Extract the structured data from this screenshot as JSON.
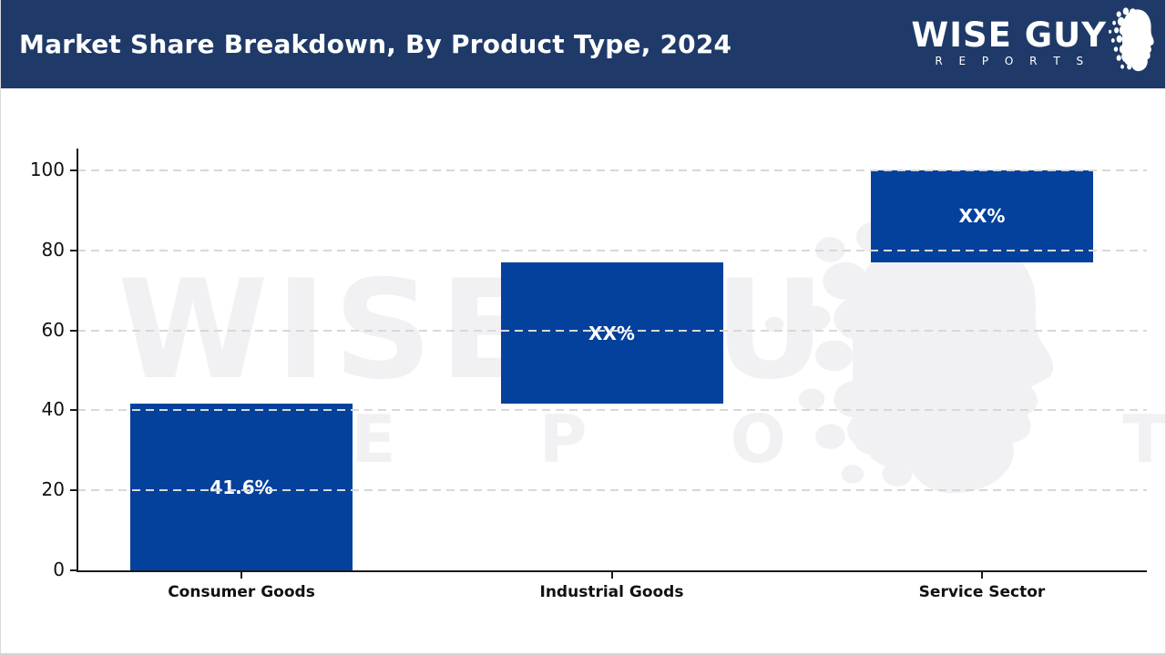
{
  "header": {
    "title": "Market Share Breakdown, By Product Type, 2024",
    "logo": {
      "line1": "WISE GUY",
      "line2": "R E P O R T S"
    }
  },
  "watermark": {
    "line1": "WISE GUY",
    "line2": "R E P O R T S"
  },
  "colors": {
    "header_bg": "#1f3a68",
    "bar": "#04419c",
    "grid": "#d8d8d8",
    "axis": "#1a1a1a",
    "watermark": "#f1f1f3",
    "bar_label": "#ffffff"
  },
  "chart_data": {
    "type": "bar",
    "subtype": "waterfall",
    "title": "Market Share Breakdown, By Product Type, 2024",
    "categories": [
      "Consumer Goods",
      "Industrial Goods",
      "Service Sector"
    ],
    "segments": [
      {
        "category": "Consumer Goods",
        "start": 0,
        "end": 41.6,
        "label": "41.6%"
      },
      {
        "category": "Industrial Goods",
        "start": 41.6,
        "end": 77,
        "label": "XX%"
      },
      {
        "category": "Service Sector",
        "start": 77,
        "end": 100,
        "label": "XX%"
      }
    ],
    "ylim": [
      0,
      100
    ],
    "yticks": [
      0,
      20,
      40,
      60,
      80,
      100
    ],
    "grid": "horizontal-dashed",
    "legend": "none"
  }
}
